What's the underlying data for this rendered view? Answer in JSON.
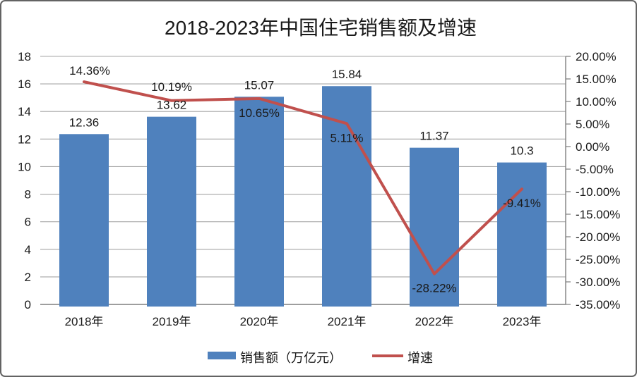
{
  "colors": {
    "bar": "#4F81BD",
    "line": "#C0504D",
    "gridline": "#A6A6A6",
    "axis": "#7F7F7F",
    "text": "#1a1a1a",
    "frame_border": "#636363",
    "background": "#FFFFFF"
  },
  "chart_data": {
    "type": "bar+line",
    "title": "2018-2023年中国住宅销售额及增速",
    "categories": [
      "2018年",
      "2019年",
      "2020年",
      "2021年",
      "2022年",
      "2023年"
    ],
    "series": [
      {
        "name": "销售额（万亿元）",
        "type": "bar",
        "axis": "left",
        "color": "#4F81BD",
        "values": [
          12.36,
          13.62,
          15.07,
          15.84,
          11.37,
          10.3
        ],
        "data_labels": [
          "12.36",
          "13.62",
          "15.07",
          "15.84",
          "11.37",
          "10.3"
        ]
      },
      {
        "name": "增速",
        "type": "line",
        "axis": "right",
        "color": "#C0504D",
        "values": [
          14.36,
          10.19,
          10.65,
          5.11,
          -28.22,
          -9.41
        ],
        "data_labels": [
          "14.36%",
          "10.19%",
          "10.65%",
          "5.11%",
          "-28.22%",
          "-9.41%"
        ]
      }
    ],
    "left_axis": {
      "min": 0,
      "max": 18,
      "step": 2,
      "tick_labels": [
        "0",
        "2",
        "4",
        "6",
        "8",
        "10",
        "12",
        "14",
        "16",
        "18"
      ]
    },
    "right_axis": {
      "min": -35,
      "max": 20,
      "step": 5,
      "tick_labels": [
        "20.00%",
        "15.00%",
        "10.00%",
        "5.00%",
        "0.00%",
        "-5.00%",
        "-10.00%",
        "-15.00%",
        "-20.00%",
        "-25.00%",
        "-30.00%",
        "-35.00%"
      ]
    },
    "grid": true,
    "legend_position": "bottom"
  }
}
